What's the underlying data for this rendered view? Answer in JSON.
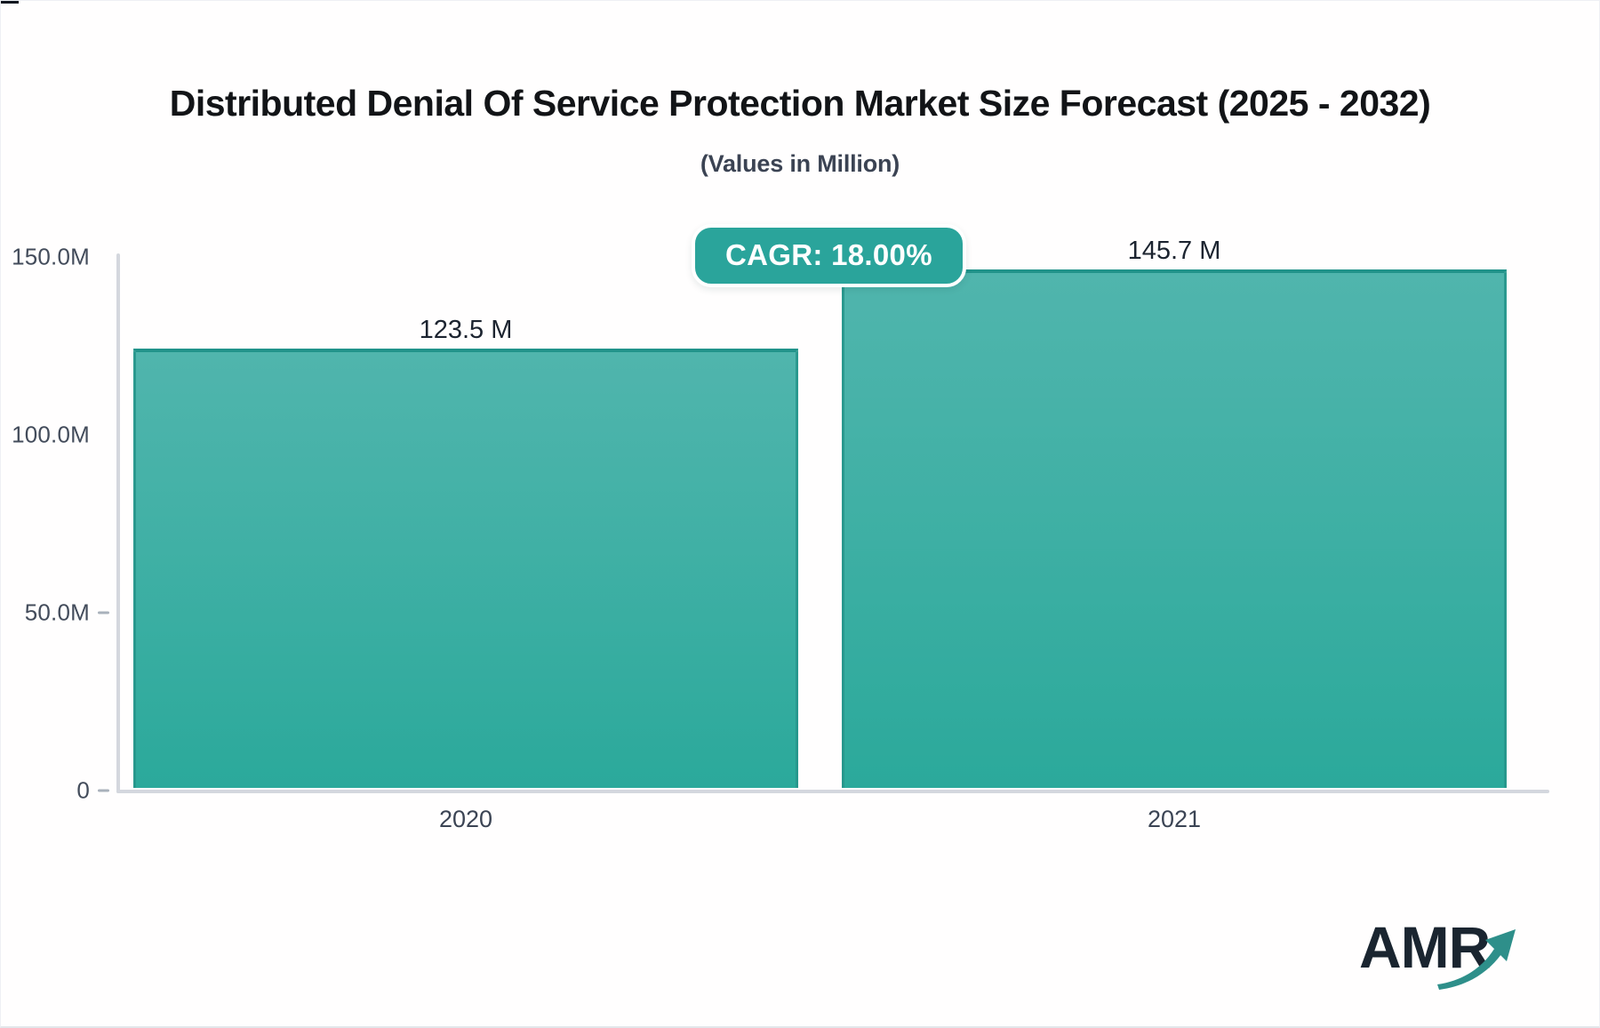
{
  "header": {
    "title": "Distributed Denial Of Service Protection Market Size Forecast (2025 - 2032)",
    "subtitle": "(Values in Million)"
  },
  "badge": {
    "text": "CAGR: 18.00%"
  },
  "logo": {
    "text": "AMR",
    "icon": "growth-arrow-icon"
  },
  "colors": {
    "bar_gradient_top": "#50b5ad",
    "bar_gradient_bottom": "#2ba99b",
    "bar_edge": "#21938a",
    "badge_background": "#2aa49b",
    "badge_text": "#ffffff",
    "axis_line": "#d4d7de",
    "tick_label": "#434c5b",
    "title_text": "#121417",
    "logo_text": "#1a2530",
    "logo_arrow": "#2e8f8a"
  },
  "chart_data": {
    "type": "bar",
    "title": "Distributed Denial Of Service Protection Market Size Forecast (2025 - 2032)",
    "subtitle": "(Values in Million)",
    "categories": [
      "2020",
      "2021"
    ],
    "values": [
      123.5,
      145.7
    ],
    "value_labels": [
      "123.5 M",
      "145.7 M"
    ],
    "series_unit": "Million",
    "cagr_annotation": "CAGR: 18.00%",
    "ylim": [
      0,
      150
    ],
    "yticks": [
      {
        "label": "150.0M",
        "value": 150,
        "dash": false
      },
      {
        "label": "100.0M",
        "value": 100,
        "dash": false
      },
      {
        "label": "50.0M",
        "value": 50,
        "dash": true
      },
      {
        "label": "0",
        "value": 0,
        "dash": true
      }
    ],
    "grid": false,
    "legend": false
  }
}
